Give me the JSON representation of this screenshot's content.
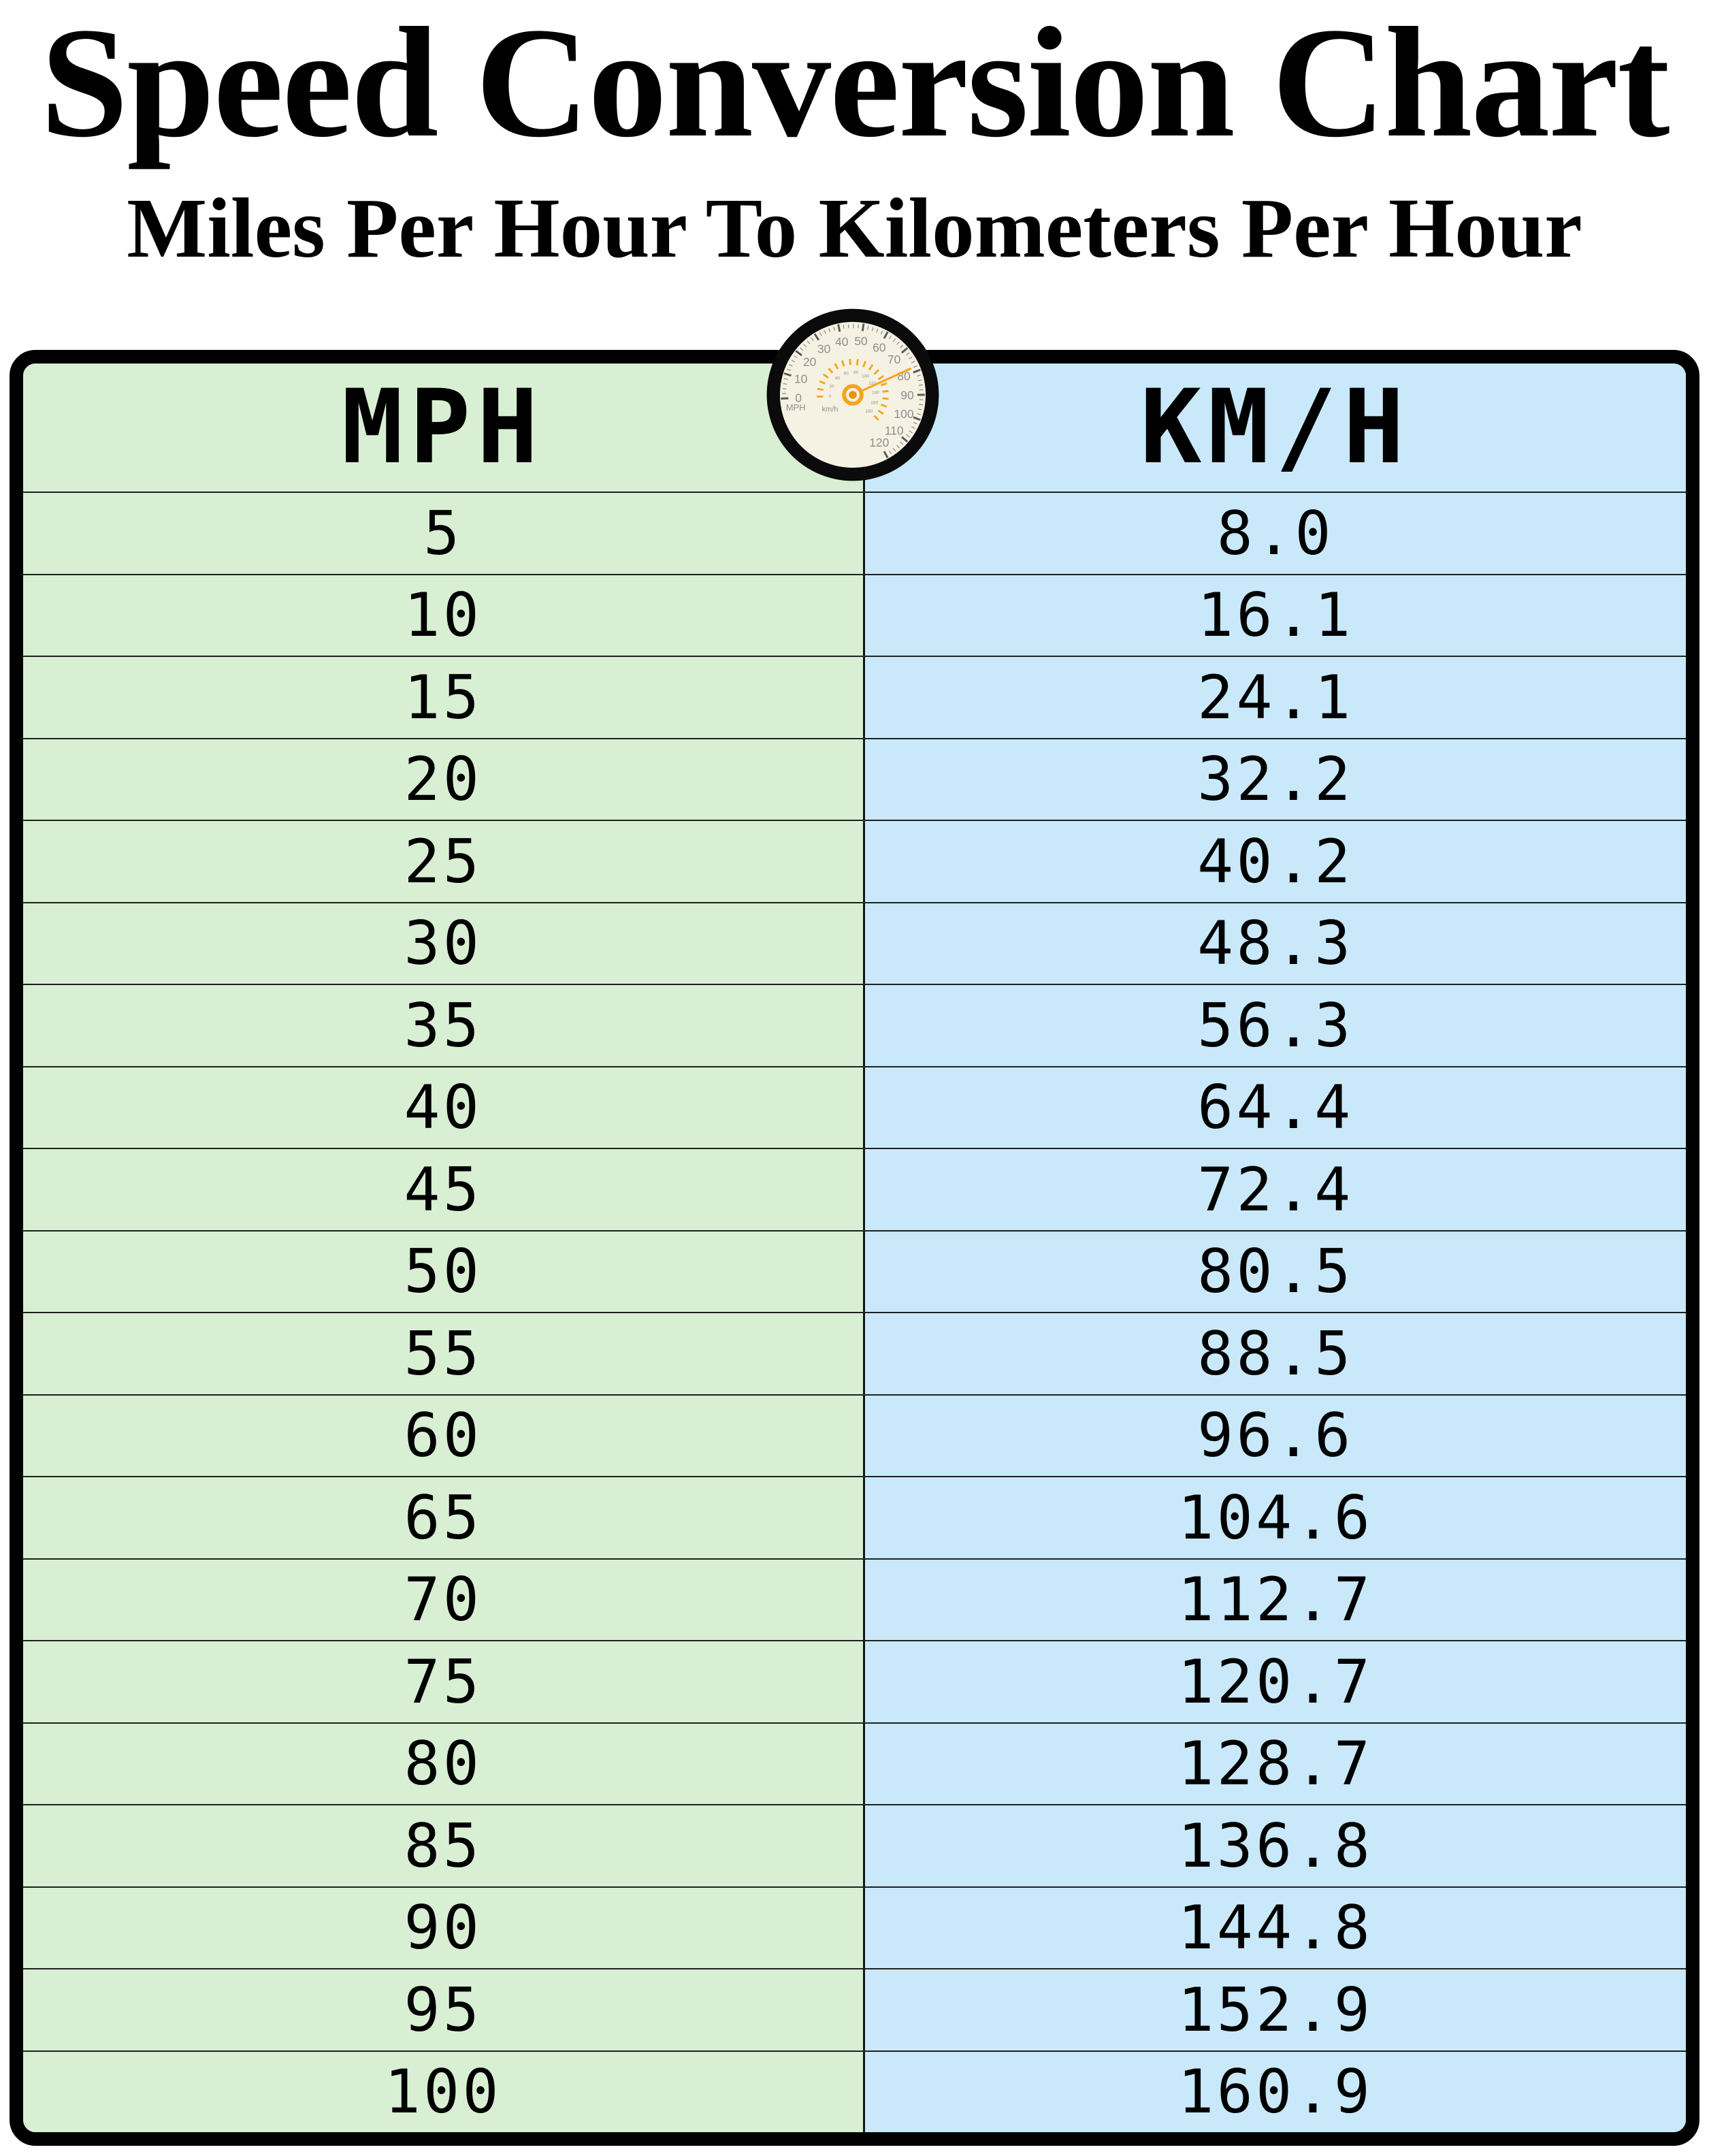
{
  "title": "Speed Conversion Chart",
  "subtitle": "Miles Per Hour To Kilometers Per Hour",
  "table": {
    "headers": {
      "mph": "MPH",
      "kmh": "KM/H"
    },
    "rows": [
      {
        "mph": "5",
        "kmh": "8.0"
      },
      {
        "mph": "10",
        "kmh": "16.1"
      },
      {
        "mph": "15",
        "kmh": "24.1"
      },
      {
        "mph": "20",
        "kmh": "32.2"
      },
      {
        "mph": "25",
        "kmh": "40.2"
      },
      {
        "mph": "30",
        "kmh": "48.3"
      },
      {
        "mph": "35",
        "kmh": "56.3"
      },
      {
        "mph": "40",
        "kmh": "64.4"
      },
      {
        "mph": "45",
        "kmh": "72.4"
      },
      {
        "mph": "50",
        "kmh": "80.5"
      },
      {
        "mph": "55",
        "kmh": "88.5"
      },
      {
        "mph": "60",
        "kmh": "96.6"
      },
      {
        "mph": "65",
        "kmh": "104.6"
      },
      {
        "mph": "70",
        "kmh": "112.7"
      },
      {
        "mph": "75",
        "kmh": "120.7"
      },
      {
        "mph": "80",
        "kmh": "128.7"
      },
      {
        "mph": "85",
        "kmh": "136.8"
      },
      {
        "mph": "90",
        "kmh": "144.8"
      },
      {
        "mph": "95",
        "kmh": "152.9"
      },
      {
        "mph": "100",
        "kmh": "160.9"
      }
    ]
  },
  "colors": {
    "mph_column": "#d8efd3",
    "kmh_column": "#c9e9fa",
    "table_border": "#000000",
    "row_line": "#202020",
    "background": "#ffffff"
  },
  "speedometer": {
    "unit_outer": "MPH",
    "unit_inner": "km/h",
    "outer_ticks": [
      0,
      10,
      20,
      30,
      40,
      50,
      60,
      70,
      80,
      90,
      100,
      110,
      120
    ],
    "inner_ticks": [
      0,
      20,
      40,
      60,
      80,
      100,
      120,
      140,
      160,
      180
    ],
    "needle_value_mph": 78,
    "colors": {
      "ring": "#0b0b0b",
      "face": "#f5f2e3",
      "tick_major": "#5a5a5a",
      "tick_minor": "#7a7a7a",
      "label": "#8e8e8e",
      "inner_label": "#97937f",
      "orange": "#f5a51d",
      "hub_center": "#e8920e"
    }
  },
  "chart_data": {
    "type": "table",
    "title": "Speed Conversion Chart",
    "subtitle": "Miles Per Hour To Kilometers Per Hour",
    "columns": [
      "MPH",
      "KM/H"
    ],
    "mph": [
      5,
      10,
      15,
      20,
      25,
      30,
      35,
      40,
      45,
      50,
      55,
      60,
      65,
      70,
      75,
      80,
      85,
      90,
      95,
      100
    ],
    "kmh": [
      8.0,
      16.1,
      24.1,
      32.2,
      40.2,
      48.3,
      56.3,
      64.4,
      72.4,
      80.5,
      88.5,
      96.6,
      104.6,
      112.7,
      120.7,
      128.7,
      136.8,
      144.8,
      152.9,
      160.9
    ]
  }
}
